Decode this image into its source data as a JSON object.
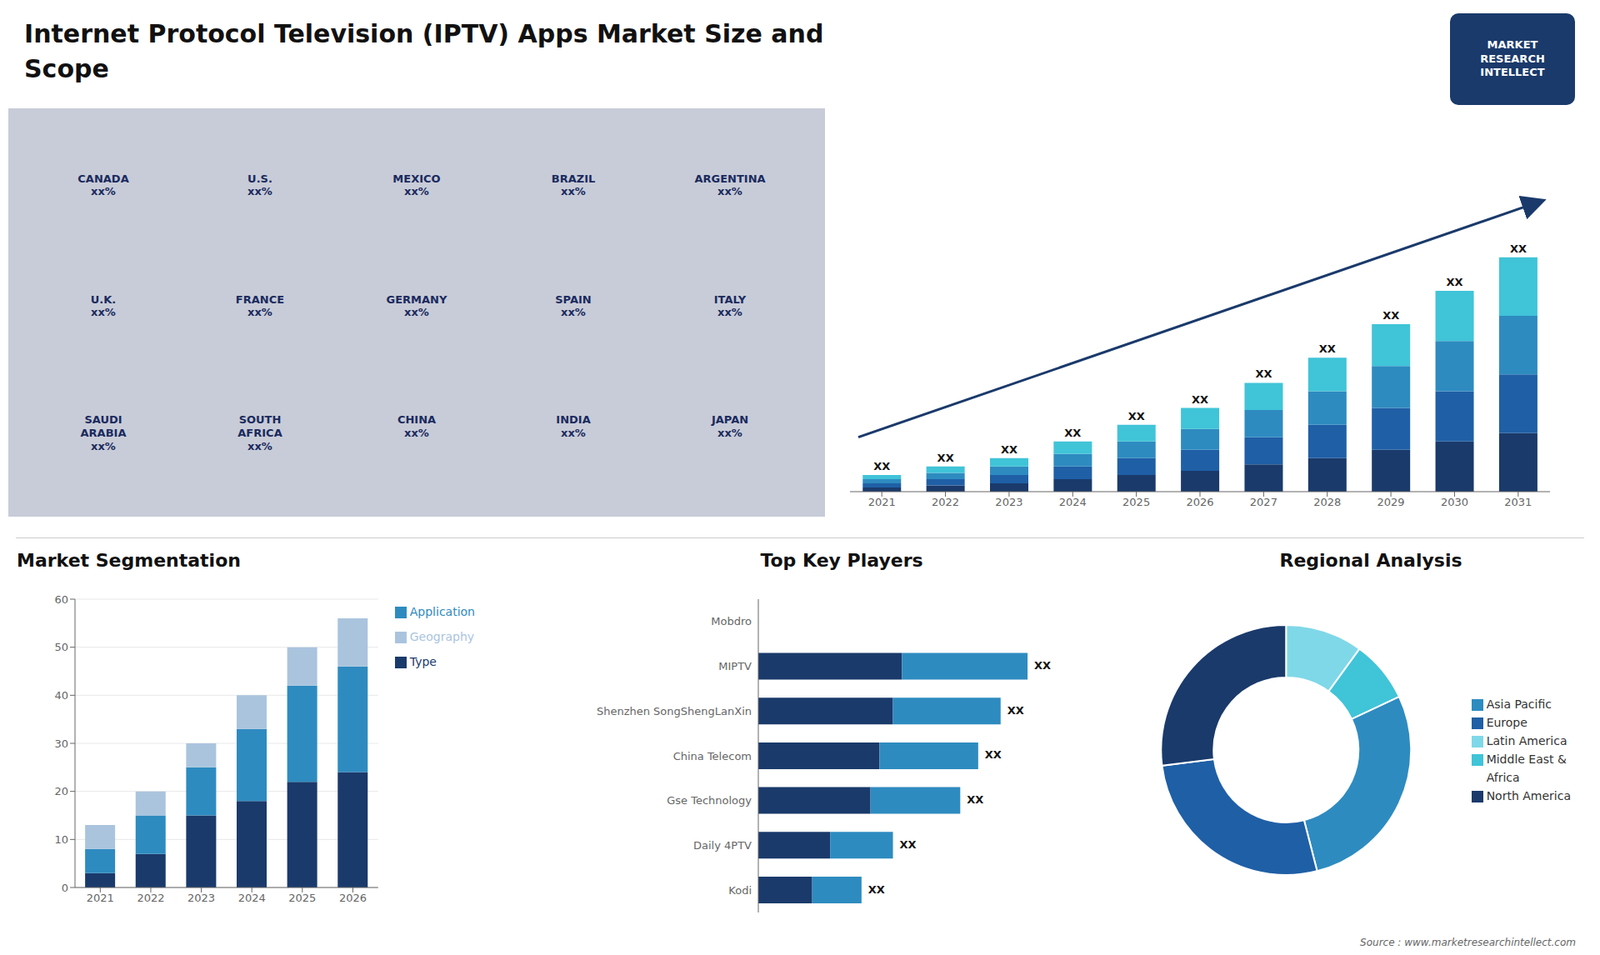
{
  "title": "Internet Protocol Television (IPTV) Apps Market Size and\nScope",
  "annotations": [
    "MARKET\nRESEARCH\nINTELLECT",
    "Source : www.marketresearchintellect.com"
  ],
  "chart_data": [
    {
      "type": "map",
      "color": "#c8ccd8",
      "annotations": [
        "CANADA\nxx%",
        "U.S.\nxx%",
        "MEXICO\nxx%",
        "BRAZIL\nxx%",
        "ARGENTINA\nxx%",
        "U.K.\nxx%",
        "FRANCE\nxx%",
        "GERMANY\nxx%",
        "SPAIN\nxx%",
        "ITALY\nxx%",
        "SAUDI\nARABIA\nxx%",
        "SOUTH\nAFRICA\nxx%",
        "CHINA\nxx%",
        "INDIA\nxx%",
        "JAPAN\nxx%"
      ]
    },
    {
      "type": "bar",
      "stacked": true,
      "categories": [
        "2021",
        "2022",
        "2023",
        "2024",
        "2025",
        "2026",
        "2027",
        "2028",
        "2029",
        "2030",
        "2031"
      ],
      "series": [
        {
          "color": "#1a3a6b",
          "values": [
            2,
            3,
            4,
            6,
            8,
            10,
            13,
            16,
            20,
            24,
            28
          ]
        },
        {
          "color": "#1f5fa6",
          "values": [
            2,
            3,
            4,
            6,
            8,
            10,
            13,
            16,
            20,
            24,
            28
          ]
        },
        {
          "color": "#2e8bc0",
          "values": [
            2,
            3,
            4,
            6,
            8,
            10,
            13,
            16,
            20,
            24,
            28
          ]
        },
        {
          "color": "#40c4d8",
          "values": [
            2,
            3,
            4,
            6,
            8,
            10,
            13,
            16,
            20,
            24,
            28
          ]
        }
      ],
      "ylim": [
        0,
        173.6
      ],
      "tick_labels": "x",
      "annotations": [
        "XX",
        "XX",
        "XX",
        "XX",
        "XX",
        "XX",
        "XX",
        "XX",
        "XX",
        "XX",
        "XX"
      ]
    },
    {
      "type": "bar",
      "title": "Market Segmentation",
      "stacked": true,
      "categories": [
        "2021",
        "2022",
        "2023",
        "2024",
        "2025",
        "2026"
      ],
      "series": [
        {
          "name": "Type",
          "color": "#1a3a6b",
          "values": [
            3,
            7,
            15,
            18,
            22,
            24
          ]
        },
        {
          "name": "Application",
          "color": "#2e8bc0",
          "values": [
            5,
            8,
            10,
            15,
            20,
            22
          ]
        },
        {
          "name": "Geography",
          "color": "#aac4de",
          "values": [
            5,
            5,
            5,
            7,
            8,
            10
          ]
        }
      ],
      "ylim": [
        0,
        60
      ],
      "yticks": [
        0,
        10,
        20,
        30,
        40,
        50,
        60
      ],
      "grid": true,
      "legend": "right"
    },
    {
      "type": "bar",
      "title": "Top Key Players",
      "orientation": "horizontal",
      "stacked": true,
      "categories": [
        "Mobdro",
        "MIPTV",
        "Shenzhen SongShengLanXin",
        "China Telecom",
        "Gse Technology",
        "Daily 4PTV",
        "Kodi"
      ],
      "series": [
        {
          "color": "#1a3a6b",
          "values": [
            0,
            32,
            30,
            27,
            25,
            16,
            12
          ]
        },
        {
          "color": "#2e8bc0",
          "values": [
            0,
            28,
            24,
            22,
            20,
            14,
            11
          ]
        }
      ],
      "xlim": [
        0,
        78
      ],
      "tick_labels": "y",
      "annotations": [
        null,
        "XX",
        "XX",
        "XX",
        "XX",
        "XX",
        "XX"
      ]
    },
    {
      "type": "donut",
      "title": "Regional Analysis",
      "categories": [
        "Latin America",
        "Middle East &\nAfrica",
        "Asia Pacific",
        "Europe",
        "North America"
      ],
      "values": [
        10,
        8,
        28,
        27,
        27
      ],
      "colors": [
        "#7fd8e8",
        "#40c4d8",
        "#2e8bc0",
        "#1f5fa6",
        "#1a3a6b"
      ],
      "legend": "right"
    }
  ]
}
